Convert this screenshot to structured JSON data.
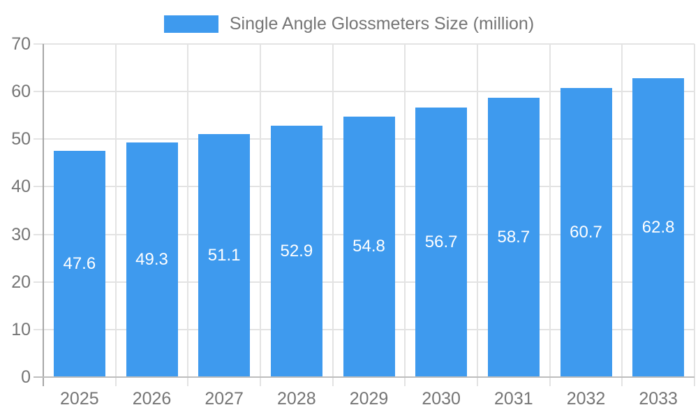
{
  "chart_data": {
    "type": "bar",
    "title": "Single Angle Glossmeters Size (million)",
    "legend_position": "top",
    "categories": [
      "2025",
      "2026",
      "2027",
      "2028",
      "2029",
      "2030",
      "2031",
      "2032",
      "2033"
    ],
    "series": [
      {
        "name": "Single Angle Glossmeters Size (million)",
        "values": [
          47.6,
          49.3,
          51.1,
          52.9,
          54.8,
          56.7,
          58.7,
          60.7,
          62.8
        ]
      }
    ],
    "value_labels": [
      "47.6",
      "49.3",
      "51.1",
      "52.9",
      "54.8",
      "56.7",
      "58.7",
      "60.7",
      "62.8"
    ],
    "xlabel": "",
    "ylabel": "",
    "ylim": [
      0,
      70
    ],
    "yticks": [
      0,
      10,
      20,
      30,
      40,
      50,
      60,
      70
    ],
    "grid": true,
    "colors": {
      "bar": "#3E9AEE",
      "gridline": "#e3e3e3",
      "y_axis_line": "#a6a6a6",
      "baseline": "#bdbdbd",
      "axis_label": "#757575",
      "legend_text": "#757575",
      "value_label": "#ffffff",
      "background": "#ffffff"
    }
  }
}
